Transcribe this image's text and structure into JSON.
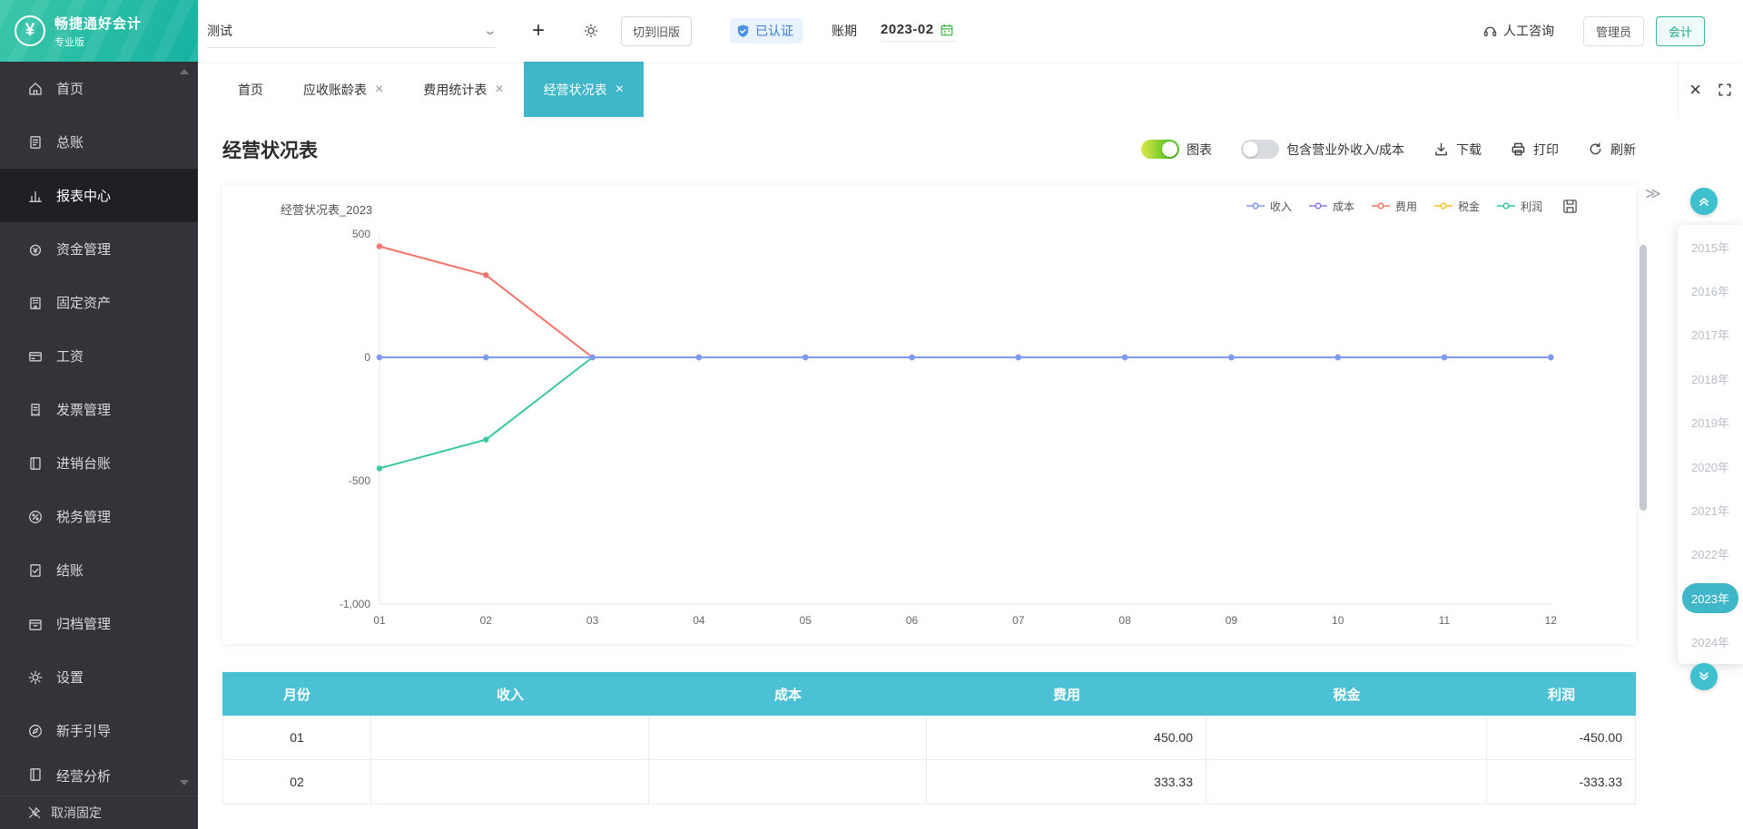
{
  "brand": {
    "name": "畅捷通好会计",
    "edition": "专业版",
    "mark": "¥"
  },
  "header": {
    "company_selector": "测试",
    "switch_old_version": "切到旧版",
    "certified_badge": "已认证",
    "period_label": "账期",
    "period_value": "2023-02",
    "support_label": "人工咨询",
    "admin_button": "管理员",
    "role_button": "会计"
  },
  "sidebar": {
    "items": [
      {
        "id": "home",
        "label": "首页",
        "icon": "home-icon",
        "active": false
      },
      {
        "id": "general-ledger",
        "label": "总账",
        "icon": "ledger-icon",
        "active": false
      },
      {
        "id": "report-center",
        "label": "报表中心",
        "icon": "report-icon",
        "active": true
      },
      {
        "id": "fund-management",
        "label": "资金管理",
        "icon": "fund-icon",
        "active": false
      },
      {
        "id": "fixed-assets",
        "label": "固定资产",
        "icon": "building-icon",
        "active": false
      },
      {
        "id": "payroll",
        "label": "工资",
        "icon": "card-icon",
        "active": false
      },
      {
        "id": "invoice-management",
        "label": "发票管理",
        "icon": "invoice-icon",
        "active": false
      },
      {
        "id": "purchase-sales-ledger",
        "label": "进销台账",
        "icon": "book-icon",
        "active": false
      },
      {
        "id": "tax-management",
        "label": "税务管理",
        "icon": "percent-icon",
        "active": false
      },
      {
        "id": "closing",
        "label": "结账",
        "icon": "check-doc-icon",
        "active": false
      },
      {
        "id": "archive-management",
        "label": "归档管理",
        "icon": "archive-icon",
        "active": false
      },
      {
        "id": "settings",
        "label": "设置",
        "icon": "gear-icon",
        "active": false
      },
      {
        "id": "beginner-guide",
        "label": "新手引导",
        "icon": "compass-icon",
        "active": false
      },
      {
        "id": "partial",
        "label": "经营分析",
        "icon": "book-icon",
        "active": false,
        "partial": true
      }
    ],
    "unpin_label": "取消固定"
  },
  "tabs": [
    {
      "id": "home",
      "label": "首页",
      "closable": false,
      "active": false
    },
    {
      "id": "receivable-aging",
      "label": "应收账龄表",
      "closable": true,
      "active": false
    },
    {
      "id": "expense-stats",
      "label": "费用统计表",
      "closable": true,
      "active": false
    },
    {
      "id": "operating-status",
      "label": "经营状况表",
      "closable": true,
      "active": true
    }
  ],
  "page": {
    "title": "经营状况表",
    "toggle_chart_label": "图表",
    "toggle_chart_on": true,
    "toggle_nonop_label": "包含营业外收入/成本",
    "toggle_nonop_on": false,
    "download_label": "下载",
    "print_label": "打印",
    "refresh_label": "刷新"
  },
  "chart_data": {
    "type": "line",
    "title": "经营状况表_2023",
    "x": [
      "01",
      "02",
      "03",
      "04",
      "05",
      "06",
      "07",
      "08",
      "09",
      "10",
      "11",
      "12"
    ],
    "ylim": [
      -1000,
      500
    ],
    "yticks": [
      {
        "value": 500,
        "label": "500"
      },
      {
        "value": 0,
        "label": "0"
      },
      {
        "value": -500,
        "label": "-500"
      },
      {
        "value": -1000,
        "label": "-1,000"
      }
    ],
    "legend_position": "top-right",
    "grid": false,
    "series": [
      {
        "name": "收入",
        "color": "#7d9bf0",
        "values": [
          0,
          0,
          0,
          0,
          0,
          0,
          0,
          0,
          0,
          0,
          0,
          0
        ]
      },
      {
        "name": "成本",
        "color": "#9379d6",
        "values": [
          0,
          0,
          0,
          0,
          0,
          0,
          0,
          0,
          0,
          0,
          0,
          0
        ]
      },
      {
        "name": "费用",
        "color": "#f4756b",
        "values": [
          450,
          333.33,
          0,
          0,
          0,
          0,
          0,
          0,
          0,
          0,
          0,
          0
        ]
      },
      {
        "name": "税金",
        "color": "#f7c02d",
        "values": [
          0,
          0,
          0,
          0,
          0,
          0,
          0,
          0,
          0,
          0,
          0,
          0
        ]
      },
      {
        "name": "利润",
        "color": "#3ac7a1",
        "values": [
          -450,
          -333.33,
          0,
          0,
          0,
          0,
          0,
          0,
          0,
          0,
          0,
          0
        ]
      }
    ]
  },
  "table": {
    "columns": [
      "月份",
      "收入",
      "成本",
      "费用",
      "税金",
      "利润"
    ],
    "rows": [
      [
        "01",
        "",
        "",
        "450.00",
        "",
        "-450.00"
      ],
      [
        "02",
        "",
        "",
        "333.33",
        "",
        "-333.33"
      ]
    ]
  },
  "year_panel": {
    "years": [
      "2015年",
      "2016年",
      "2017年",
      "2018年",
      "2019年",
      "2020年",
      "2021年",
      "2022年",
      "2023年",
      "2024年"
    ],
    "selected": "2023年"
  },
  "colors": {
    "brand_teal": "#18b3a2",
    "tab_active": "#3fb7c8",
    "table_header": "#4cc0d4",
    "sidebar_bg": "#33343a",
    "sidebar_active": "#1f2024",
    "toggle_on": "#52c51f",
    "certified_blue": "#3a7bd5"
  }
}
